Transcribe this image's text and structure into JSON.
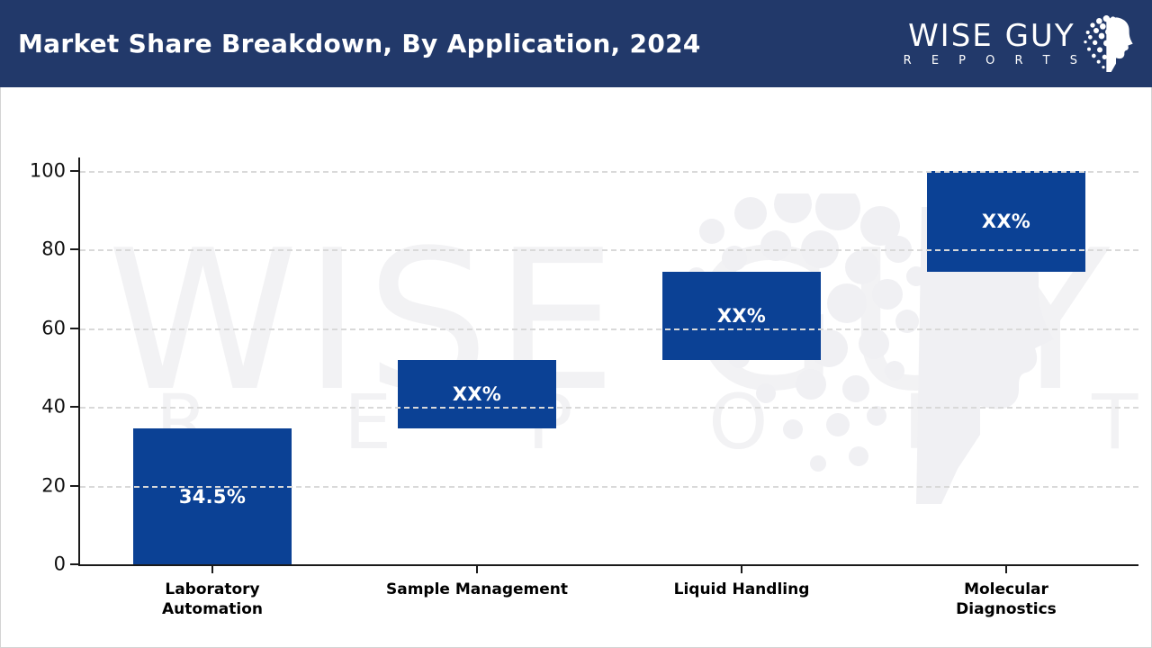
{
  "header": {
    "title": "Market Share Breakdown, By Application, 2024",
    "logo": {
      "line1": "WISE GUY",
      "line2": "R E P O R T S"
    }
  },
  "watermark": {
    "line1": "WISE GUY",
    "line2": "R E P O R T S"
  },
  "icons": {
    "wise_guy_face": "dotted-head-profile",
    "watermark_face": "dotted-head-profile"
  },
  "colors": {
    "header_bg": "#22396a",
    "bar_blue": "#0b4195",
    "watermark_gray": "#f2f2f4",
    "gridline_gray": "#d9d9d9",
    "axis_black": "#1a1a1a"
  },
  "chart_data": {
    "type": "bar",
    "variant": "waterfall-breakdown",
    "title": "Market Share Breakdown, By Application, 2024",
    "categories": [
      "Laboratory Automation",
      "Sample Management",
      "Liquid Handling",
      "Molecular Diagnostics"
    ],
    "segments": [
      {
        "category": "Laboratory Automation",
        "start": 0,
        "end": 34.5,
        "label": "34.5%"
      },
      {
        "category": "Sample Management",
        "start": 34.5,
        "end": 52,
        "label": "XX%"
      },
      {
        "category": "Liquid Handling",
        "start": 52,
        "end": 74.5,
        "label": "XX%"
      },
      {
        "category": "Molecular Diagnostics",
        "start": 74.5,
        "end": 100,
        "label": "XX%"
      }
    ],
    "yticks": [
      0,
      20,
      40,
      60,
      80,
      100
    ],
    "ylim": [
      0,
      103
    ],
    "xlabel": "",
    "ylabel": "",
    "grid": "horizontal-dashed",
    "legend": "none",
    "bar_color": "#0b4195",
    "bar_label_color": "#ffffff"
  }
}
